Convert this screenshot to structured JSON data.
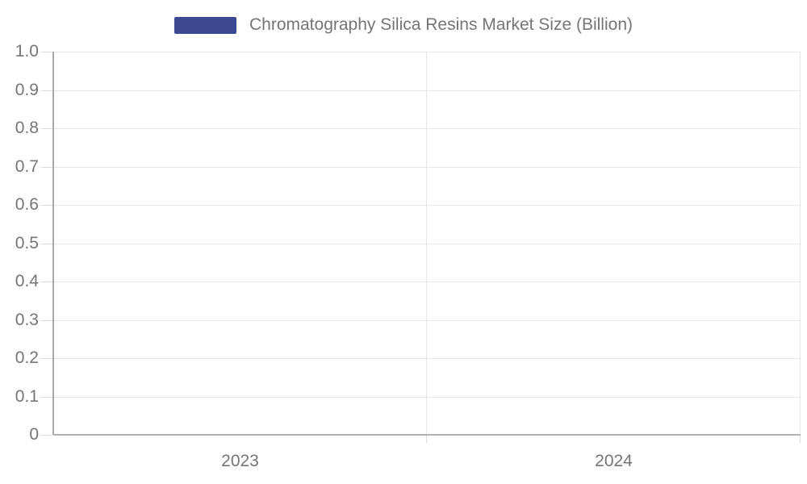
{
  "legend": {
    "label": "Chromatography Silica Resins Market Size (Billion)",
    "swatch_color": "#3B4992"
  },
  "chart_data": {
    "type": "bar",
    "title": "Chromatography Silica Resins Market Size (Billion)",
    "categories": [
      "2023",
      "2024"
    ],
    "series": [
      {
        "name": "Chromatography Silica Resins Market Size (Billion)",
        "values": [
          null,
          null
        ]
      }
    ],
    "xlabel": "",
    "ylabel": "",
    "ylim": [
      0,
      1.0
    ],
    "ytick_step": 0.1,
    "ytick_labels": [
      "0",
      "0.1",
      "0.2",
      "0.3",
      "0.4",
      "0.5",
      "0.6",
      "0.7",
      "0.8",
      "0.9",
      "1.0"
    ],
    "grid": true,
    "legend_position": "top-center",
    "plot_is_empty": true
  },
  "colors": {
    "series": "#3B4992",
    "grid": "#e6e6e6",
    "grid_strong": "#dcdcdc",
    "axis": "#a8a8a8",
    "axis_bottom": "#b0b0b0",
    "text": "#757575",
    "background": "#ffffff"
  }
}
